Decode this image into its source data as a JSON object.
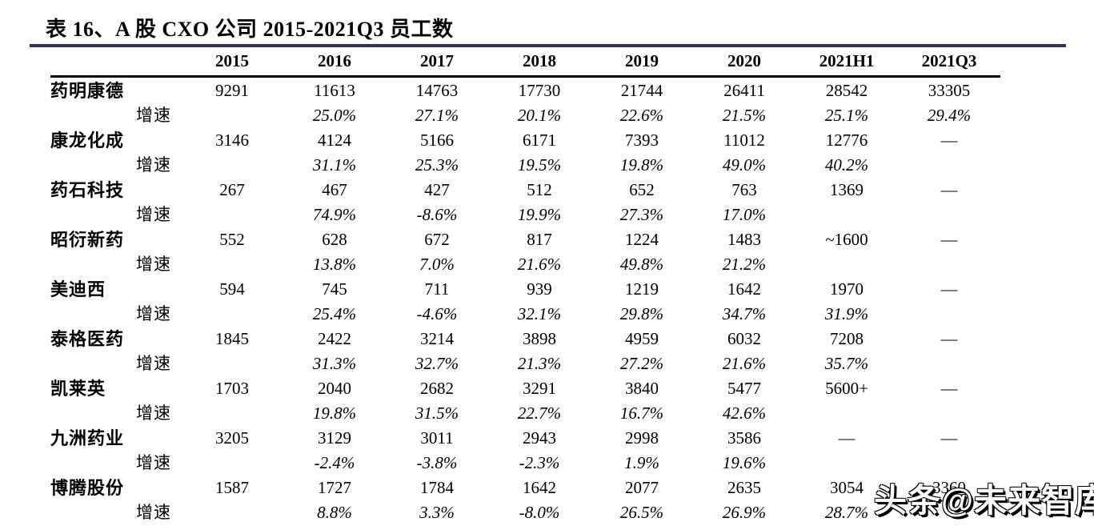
{
  "title": "表 16、A 股 CXO 公司 2015-2021Q3 员工数",
  "watermark": "头条@未来智库",
  "colors": {
    "title_rule": "#32315e",
    "header_rule": "#000000",
    "text": "#000000",
    "watermark_fill": "#ffffff",
    "watermark_outline": "#000000"
  },
  "table": {
    "columns": [
      "2015",
      "2016",
      "2017",
      "2018",
      "2019",
      "2020",
      "2021H1",
      "2021Q3"
    ],
    "growth_label": "增速",
    "companies": [
      {
        "name": "药明康德",
        "employees": [
          "9291",
          "11613",
          "14763",
          "17730",
          "21744",
          "26411",
          "28542",
          "33305"
        ],
        "growth": [
          "",
          "25.0%",
          "27.1%",
          "20.1%",
          "22.6%",
          "21.5%",
          "25.1%",
          "29.4%"
        ]
      },
      {
        "name": "康龙化成",
        "employees": [
          "3146",
          "4124",
          "5166",
          "6171",
          "7393",
          "11012",
          "12776",
          "—"
        ],
        "growth": [
          "",
          "31.1%",
          "25.3%",
          "19.5%",
          "19.8%",
          "49.0%",
          "40.2%",
          ""
        ]
      },
      {
        "name": "药石科技",
        "employees": [
          "267",
          "467",
          "427",
          "512",
          "652",
          "763",
          "1369",
          "—"
        ],
        "growth": [
          "",
          "74.9%",
          "-8.6%",
          "19.9%",
          "27.3%",
          "17.0%",
          "",
          ""
        ]
      },
      {
        "name": "昭衍新药",
        "employees": [
          "552",
          "628",
          "672",
          "817",
          "1224",
          "1483",
          "~1600",
          "—"
        ],
        "growth": [
          "",
          "13.8%",
          "7.0%",
          "21.6%",
          "49.8%",
          "21.2%",
          "",
          ""
        ]
      },
      {
        "name": "美迪西",
        "employees": [
          "594",
          "745",
          "711",
          "939",
          "1219",
          "1642",
          "1970",
          "—"
        ],
        "growth": [
          "",
          "25.4%",
          "-4.6%",
          "32.1%",
          "29.8%",
          "34.7%",
          "31.9%",
          ""
        ]
      },
      {
        "name": "泰格医药",
        "employees": [
          "1845",
          "2422",
          "3214",
          "3898",
          "4959",
          "6032",
          "7208",
          "—"
        ],
        "growth": [
          "",
          "31.3%",
          "32.7%",
          "21.3%",
          "27.2%",
          "21.6%",
          "35.7%",
          ""
        ]
      },
      {
        "name": "凯莱英",
        "employees": [
          "1703",
          "2040",
          "2682",
          "3291",
          "3840",
          "5477",
          "5600+",
          "—"
        ],
        "growth": [
          "",
          "19.8%",
          "31.5%",
          "22.7%",
          "16.7%",
          "42.6%",
          "",
          ""
        ]
      },
      {
        "name": "九洲药业",
        "employees": [
          "3205",
          "3129",
          "3011",
          "2943",
          "2998",
          "3586",
          "—",
          "—"
        ],
        "growth": [
          "",
          "-2.4%",
          "-3.8%",
          "-2.3%",
          "1.9%",
          "19.6%",
          "",
          ""
        ]
      },
      {
        "name": "博腾股份",
        "employees": [
          "1587",
          "1727",
          "1784",
          "1642",
          "2077",
          "2635",
          "3054",
          "3360"
        ],
        "growth": [
          "",
          "8.8%",
          "3.3%",
          "-8.0%",
          "26.5%",
          "26.9%",
          "28.7%",
          ""
        ]
      }
    ]
  }
}
